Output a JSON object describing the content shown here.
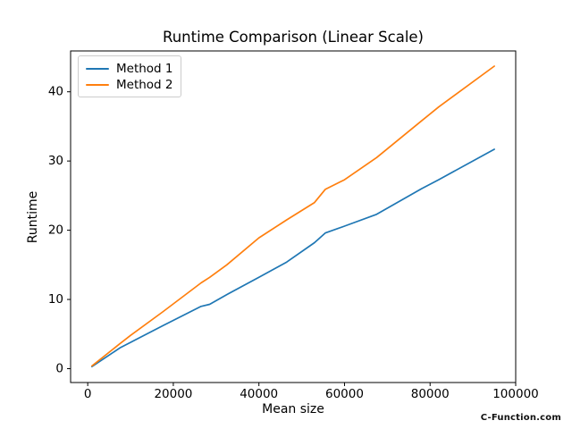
{
  "figure": {
    "title": "Runtime Comparison (Linear Scale)",
    "xlabel": "Mean size",
    "ylabel": "Runtime",
    "watermark": "C-Function.com",
    "background_color": "#ffffff",
    "spine_color": "#000000"
  },
  "chart_data": {
    "type": "line",
    "title": "Runtime Comparison (Linear Scale)",
    "xlabel": "Mean size",
    "ylabel": "Runtime",
    "x": [
      1000,
      7500,
      10000,
      17500,
      26500,
      28500,
      32500,
      40000,
      46500,
      53000,
      55500,
      60000,
      67500,
      78000,
      82000,
      95000
    ],
    "series": [
      {
        "name": "Method 1",
        "color": "#1f77b4",
        "values": [
          0.3,
          3.0,
          3.8,
          6.2,
          9.0,
          9.3,
          10.7,
          13.2,
          15.4,
          18.2,
          19.6,
          20.6,
          22.3,
          26.0,
          27.3,
          31.7
        ]
      },
      {
        "name": "Method 2",
        "color": "#ff7f0e",
        "values": [
          0.4,
          3.6,
          4.8,
          8.2,
          12.4,
          13.2,
          15.0,
          18.9,
          21.5,
          24.0,
          25.9,
          27.3,
          30.5,
          35.8,
          37.8,
          43.7
        ]
      }
    ],
    "xticks": {
      "values": [
        0,
        20000,
        40000,
        60000,
        80000,
        100000
      ],
      "labels": [
        "0",
        "20000",
        "40000",
        "60000",
        "80000",
        "100000"
      ]
    },
    "yticks": {
      "values": [
        0,
        10,
        20,
        30,
        40
      ],
      "labels": [
        "0",
        "10",
        "20",
        "30",
        "40"
      ]
    },
    "xlim": [
      -4000,
      100000
    ],
    "ylim": [
      -2.0,
      45.9
    ],
    "grid": false,
    "legend_position": "upper left",
    "line_width": 1.7
  }
}
